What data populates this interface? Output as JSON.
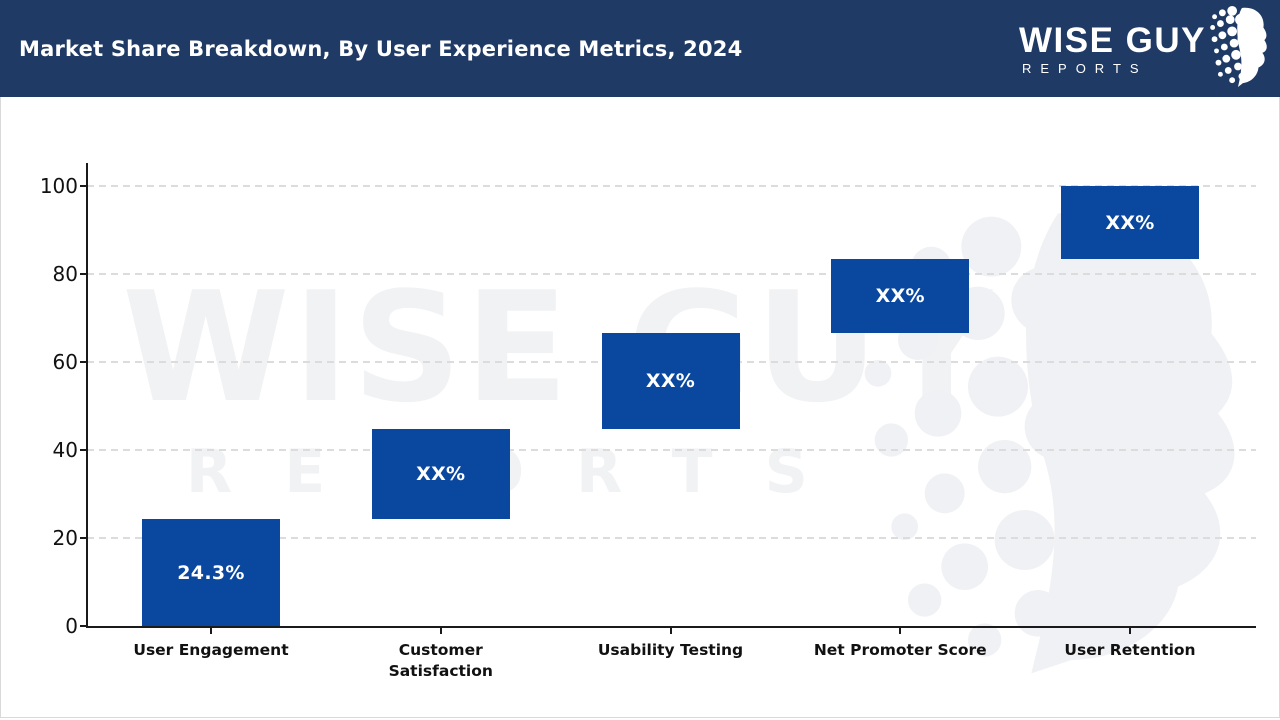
{
  "header": {
    "title": "Market Share Breakdown, By User Experience Metrics, 2024",
    "brand_name": "WISE GUY",
    "brand_subtitle": "REPORTS",
    "bg_color": "#203a66"
  },
  "watermark": {
    "line1": "WISE GUY",
    "line2": "REPORTS"
  },
  "chart_data": {
    "type": "bar",
    "subtype": "waterfall",
    "title": "Market Share Breakdown, By User Experience Metrics, 2024",
    "categories": [
      "User Engagement",
      "Customer\nSatisfaction",
      "Usability Testing",
      "Net Promoter Score",
      "User Retention"
    ],
    "segments": [
      {
        "category": "User Engagement",
        "start": 0,
        "end": 24.3,
        "label": "24.3%"
      },
      {
        "category": "Customer Satisfaction",
        "start": 24.3,
        "end": 44.8,
        "label": "XX%"
      },
      {
        "category": "Usability Testing",
        "start": 44.8,
        "end": 66.6,
        "label": "XX%"
      },
      {
        "category": "Net Promoter Score",
        "start": 66.6,
        "end": 83.4,
        "label": "XX%"
      },
      {
        "category": "User Retention",
        "start": 83.4,
        "end": 100,
        "label": "XX%"
      }
    ],
    "xlabel": "",
    "ylabel": "",
    "ylim": [
      0,
      100
    ],
    "yticks": [
      0,
      20,
      40,
      60,
      80,
      100
    ],
    "grid": "horizontal-dashed",
    "legend": "none",
    "bar_color": "#0a479e",
    "bar_label_color": "#ffffff",
    "axis_color": "#1a1a1a",
    "grid_color": "#dcdcdc"
  }
}
